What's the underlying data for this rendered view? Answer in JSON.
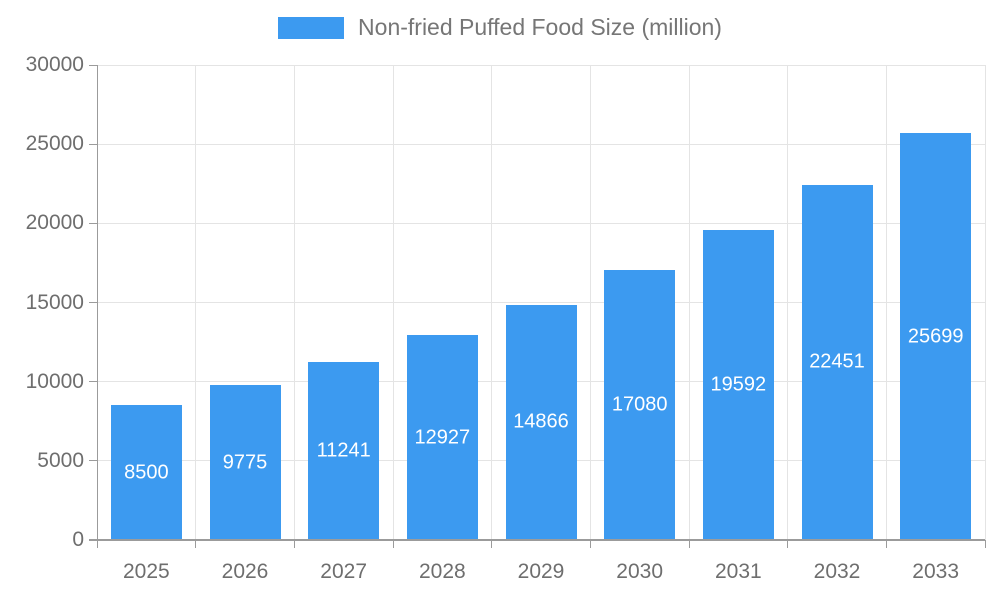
{
  "legend": {
    "label": "Non-fried Puffed Food Size (million)"
  },
  "colors": {
    "bar": "#3c9af0",
    "grid": "#e4e4e4",
    "axis": "#9b9b9b",
    "tick_text": "#6e6e6e",
    "legend_text": "#767676",
    "bar_label_text": "#ffffff",
    "background": "#ffffff"
  },
  "chart_data": {
    "type": "bar",
    "title": "",
    "legend": "Non-fried Puffed Food Size (million)",
    "legend_position": "top-center",
    "categories": [
      "2025",
      "2026",
      "2027",
      "2028",
      "2029",
      "2030",
      "2031",
      "2032",
      "2033"
    ],
    "values": [
      8500,
      9775,
      11241,
      12927,
      14866,
      17080,
      19592,
      22451,
      25699
    ],
    "xlabel": "",
    "ylabel": "",
    "ylim": [
      0,
      30000
    ],
    "ytick_step": 5000,
    "ytick_labels": [
      "0",
      "5000",
      "10000",
      "15000",
      "20000",
      "25000",
      "30000"
    ],
    "grid": true,
    "grid_vertical": true,
    "bar_value_labels": "inside-centered"
  }
}
